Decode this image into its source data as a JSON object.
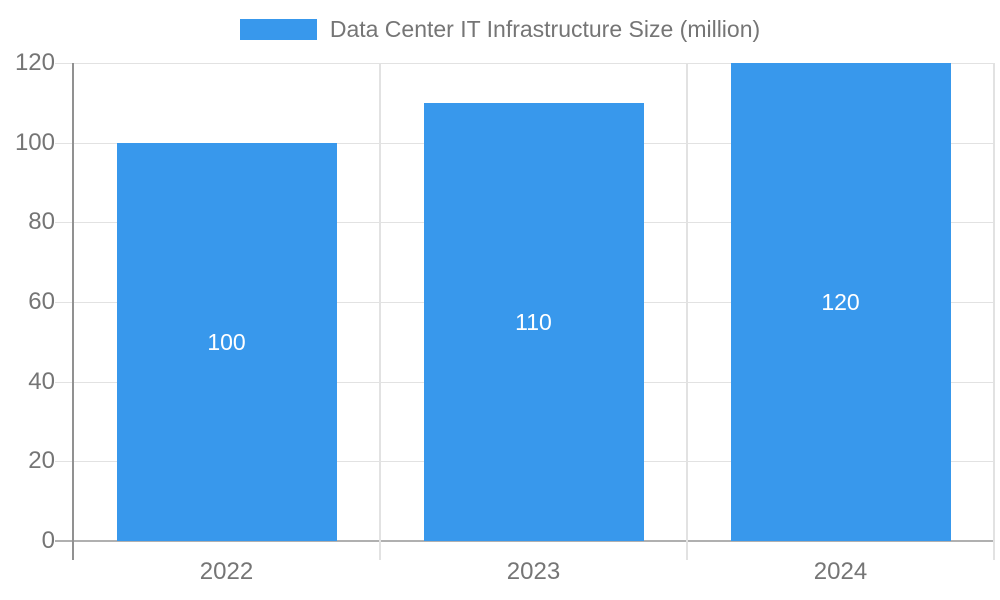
{
  "chart_data": {
    "type": "bar",
    "title": "",
    "legend": {
      "label": "Data Center IT Infrastructure Size (million)",
      "position": "top"
    },
    "categories": [
      "2022",
      "2023",
      "2024"
    ],
    "series": [
      {
        "name": "Data Center IT Infrastructure Size (million)",
        "values": [
          100,
          110,
          120
        ]
      }
    ],
    "data_labels": [
      "100",
      "110",
      "120"
    ],
    "xlabel": "",
    "ylabel": "",
    "ylim": [
      0,
      120
    ],
    "yticks": [
      0,
      20,
      40,
      60,
      80,
      100,
      120
    ],
    "grid": true,
    "legend_position": "top-center",
    "colors": {
      "bar": "#3898ec",
      "grid_line": "#e2e2e2",
      "axis_line": "#919191",
      "baseline": "#b0b0b0",
      "tick_text": "#757575",
      "legend_text": "#757575",
      "data_label_text": "#ffffff",
      "background": "#ffffff"
    }
  }
}
